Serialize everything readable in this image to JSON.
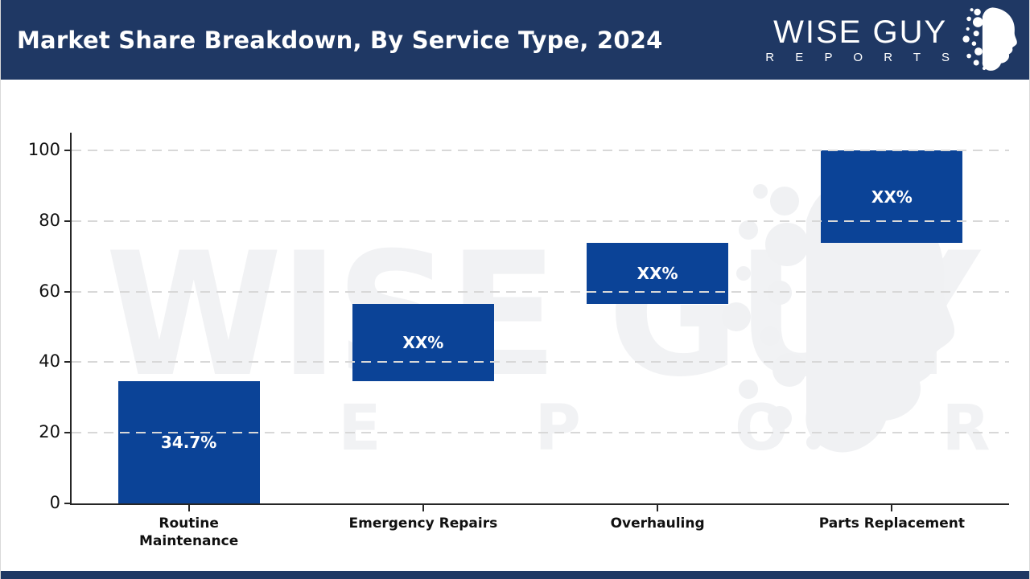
{
  "header": {
    "title": "Market Share Breakdown, By Service Type, 2024",
    "logo": {
      "line1": "WISE GUY",
      "line2": "REPORTS"
    }
  },
  "watermark": {
    "line1": "WISE GUY",
    "line2": "REPORTS"
  },
  "colors": {
    "header_bg": "#1f3864",
    "bar": "#0b4397",
    "bar_label": "#ffffff",
    "grid": "#d8d8d8",
    "axis": "#262626",
    "watermark": "#f1f2f4"
  },
  "chart_data": {
    "type": "bar",
    "subtype": "waterfall",
    "title": "Market Share Breakdown, By Service Type, 2024",
    "xlabel": "",
    "ylabel": "",
    "ylim": [
      0,
      100
    ],
    "yticks": [
      0,
      20,
      40,
      60,
      80,
      100
    ],
    "grid": "horizontal-dashed",
    "legend": "none",
    "categories": [
      "Routine Maintenance",
      "Emergency Repairs",
      "Overhauling",
      "Parts Replacement"
    ],
    "segments": [
      {
        "category": "Routine Maintenance",
        "start": 0,
        "end": 34.7,
        "label": "34.7%"
      },
      {
        "category": "Emergency Repairs",
        "start": 34.7,
        "end": 56.5,
        "label": "XX%"
      },
      {
        "category": "Overhauling",
        "start": 56.5,
        "end": 73.8,
        "label": "XX%"
      },
      {
        "category": "Parts Replacement",
        "start": 73.8,
        "end": 100,
        "label": "XX%"
      }
    ]
  }
}
